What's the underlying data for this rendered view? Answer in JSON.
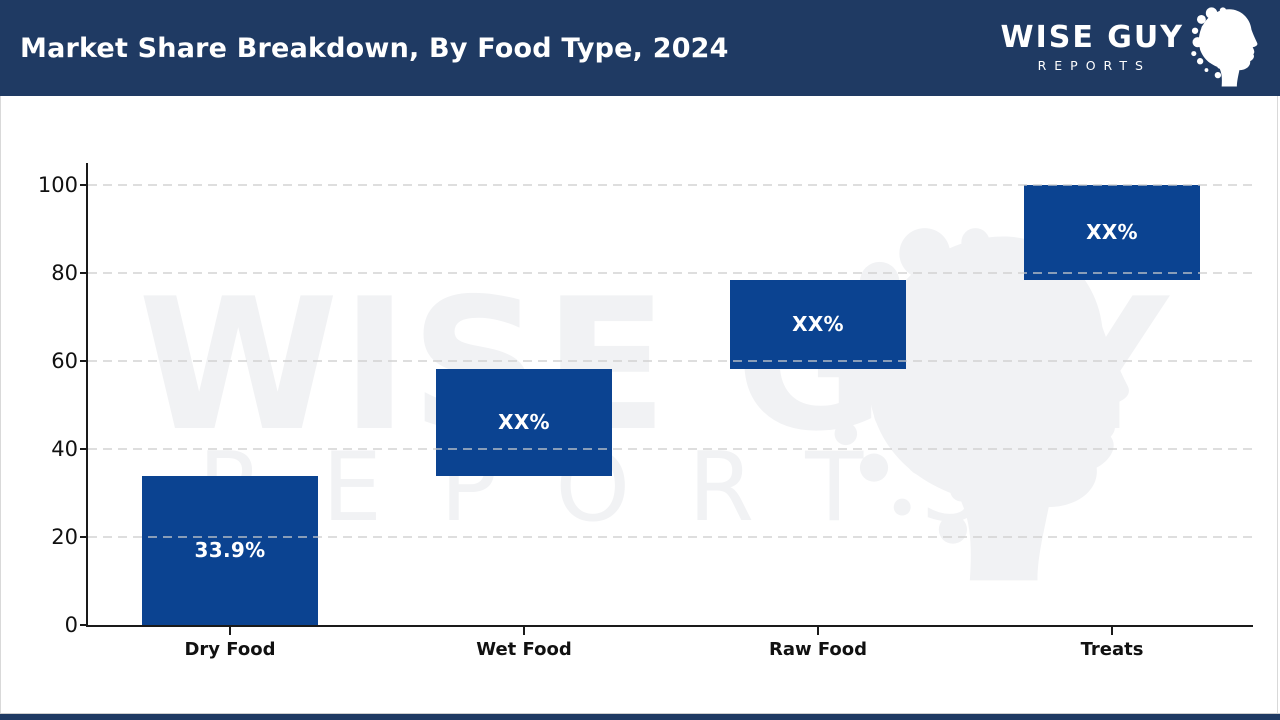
{
  "header": {
    "title": "Market Share Breakdown, By Food Type, 2024"
  },
  "brand": {
    "name": "WISE GUY",
    "subtitle": "REPORTS"
  },
  "watermark": {
    "name": "WISE GUY",
    "subtitle": "REPORTS"
  },
  "colors": {
    "header_navy": "#1f3a63",
    "footer_navy": "#1f3a63",
    "bar_blue": "#0b4391",
    "bar_label_white": "#ffffff",
    "watermark_gray": "#f1f2f4",
    "gridline_gray": "#e3e3e3",
    "axis_black": "#1a1a1a"
  },
  "chart_data": {
    "type": "bar",
    "subtype": "waterfall",
    "title": "Market Share Breakdown, By Food Type, 2024",
    "categories": [
      "Dry Food",
      "Wet Food",
      "Raw Food",
      "Treats"
    ],
    "segments": [
      {
        "category": "Dry Food",
        "start": 0,
        "end": 33.9,
        "label": "33.9%"
      },
      {
        "category": "Wet Food",
        "start": 33.9,
        "end": 58.2,
        "label": "XX%"
      },
      {
        "category": "Raw Food",
        "start": 58.2,
        "end": 78.5,
        "label": "XX%"
      },
      {
        "category": "Treats",
        "start": 78.5,
        "end": 100,
        "label": "XX%"
      }
    ],
    "xlabel": "",
    "ylabel": "",
    "yticks": [
      0,
      20,
      40,
      60,
      80,
      100
    ],
    "ylim": [
      0,
      105
    ],
    "grid": true,
    "grid_style": "dashed",
    "legend": null,
    "bar_color": "#0b4391",
    "bar_label_color": "#ffffff"
  }
}
